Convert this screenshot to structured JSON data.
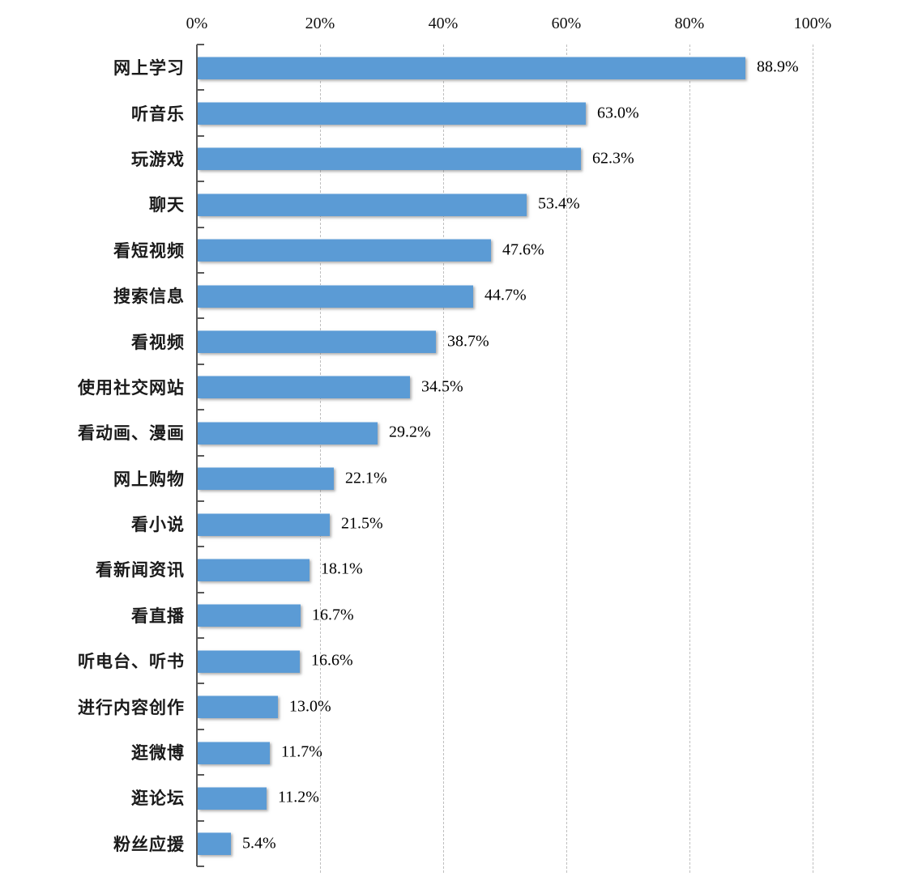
{
  "chart_data": {
    "type": "bar",
    "orientation": "horizontal",
    "title": "",
    "xlabel": "",
    "ylabel": "",
    "x_axis": {
      "position": "top",
      "min": 0,
      "max": 100,
      "tick_step": 20,
      "tick_labels": [
        "0%",
        "20%",
        "40%",
        "60%",
        "80%",
        "100%"
      ]
    },
    "grid": {
      "vertical_dashed": true
    },
    "legend": null,
    "bar_color": "#5B9BD5",
    "categories": [
      "网上学习",
      "听音乐",
      "玩游戏",
      "聊天",
      "看短视频",
      "搜索信息",
      "看视频",
      "使用社交网站",
      "看动画、漫画",
      "网上购物",
      "看小说",
      "看新闻资讯",
      "看直播",
      "听电台、听书",
      "进行内容创作",
      "逛微博",
      "逛论坛",
      "粉丝应援"
    ],
    "values": [
      88.9,
      63.0,
      62.3,
      53.4,
      47.6,
      44.7,
      38.7,
      34.5,
      29.2,
      22.1,
      21.5,
      18.1,
      16.7,
      16.6,
      13.0,
      11.7,
      11.2,
      5.4
    ],
    "value_labels": [
      "88.9%",
      "63.0%",
      "62.3%",
      "53.4%",
      "47.6%",
      "44.7%",
      "38.7%",
      "34.5%",
      "29.2%",
      "22.1%",
      "21.5%",
      "18.1%",
      "16.7%",
      "16.6%",
      "13.0%",
      "11.7%",
      "11.2%",
      "5.4%"
    ]
  },
  "colors": {
    "bar": "#5B9BD5",
    "axis": "#595959",
    "gridline": "#BFBFBF",
    "text": "#000000",
    "background": "#FFFFFF"
  }
}
